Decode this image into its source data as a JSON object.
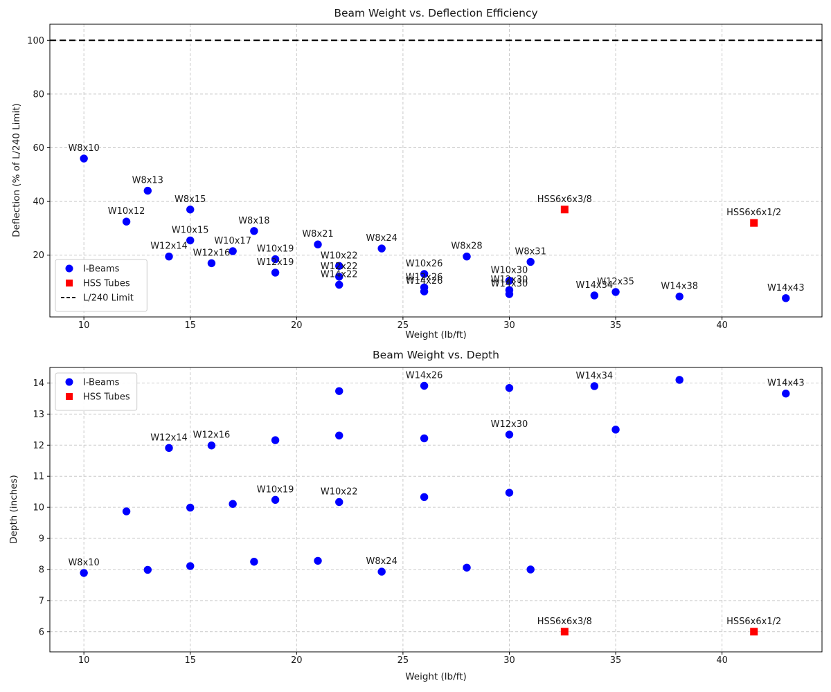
{
  "colors": {
    "ibeam": "#0000ff",
    "hss": "#ff0000",
    "ref_line": "#000000",
    "grid": "#c9c9c9",
    "spine": "#000000",
    "background": "#ffffff",
    "text": "#1a1a1a"
  },
  "chart_data": [
    {
      "type": "scatter",
      "title": "Beam Weight vs. Deflection Efficiency",
      "xlabel": "Weight (lb/ft)",
      "ylabel": "Deflection (% of L/240 Limit)",
      "xlim": [
        8.4,
        44.7
      ],
      "ylim": [
        -3,
        106
      ],
      "xticks": [
        10,
        15,
        20,
        25,
        30,
        35,
        40
      ],
      "yticks": [
        20,
        40,
        60,
        80,
        100
      ],
      "grid": true,
      "legend": {
        "position": "lower-left",
        "entries": [
          "I-Beams",
          "HSS Tubes",
          "L/240 Limit"
        ]
      },
      "series": [
        {
          "name": "I-Beams",
          "marker": "circle",
          "color": "#0000ff",
          "points": [
            {
              "label": "W8x10",
              "x": 10,
              "y": 56,
              "labeled": true
            },
            {
              "label": "W10x12",
              "x": 12,
              "y": 32.5,
              "labeled": true
            },
            {
              "label": "W8x13",
              "x": 13,
              "y": 44,
              "labeled": true
            },
            {
              "label": "W12x14",
              "x": 14,
              "y": 19.5,
              "labeled": true
            },
            {
              "label": "W8x15",
              "x": 15,
              "y": 37,
              "labeled": true
            },
            {
              "label": "W10x15",
              "x": 15,
              "y": 25.5,
              "labeled": true
            },
            {
              "label": "W12x16",
              "x": 16,
              "y": 17,
              "labeled": true
            },
            {
              "label": "W10x17",
              "x": 17,
              "y": 21.5,
              "labeled": true
            },
            {
              "label": "W8x18",
              "x": 18,
              "y": 29,
              "labeled": true
            },
            {
              "label": "W10x19",
              "x": 19,
              "y": 18.5,
              "labeled": true
            },
            {
              "label": "W12x19",
              "x": 19,
              "y": 13.5,
              "labeled": true
            },
            {
              "label": "W8x21",
              "x": 21,
              "y": 24,
              "labeled": true
            },
            {
              "label": "W10x22",
              "x": 22,
              "y": 16,
              "labeled": true
            },
            {
              "label": "W12x22",
              "x": 22,
              "y": 12,
              "labeled": true
            },
            {
              "label": "W14x22",
              "x": 22,
              "y": 9,
              "labeled": true
            },
            {
              "label": "W8x24",
              "x": 24,
              "y": 22.5,
              "labeled": true
            },
            {
              "label": "W10x26",
              "x": 26,
              "y": 13,
              "labeled": true
            },
            {
              "label": "W12x26",
              "x": 26,
              "y": 8,
              "labeled": true
            },
            {
              "label": "W14x26",
              "x": 26,
              "y": 6.5,
              "labeled": true
            },
            {
              "label": "W8x28",
              "x": 28,
              "y": 19.5,
              "labeled": true
            },
            {
              "label": "W10x30",
              "x": 30,
              "y": 10.5,
              "labeled": true
            },
            {
              "label": "W12x30",
              "x": 30,
              "y": 7,
              "labeled": true
            },
            {
              "label": "W14x30",
              "x": 30,
              "y": 5.5,
              "labeled": true
            },
            {
              "label": "W8x31",
              "x": 31,
              "y": 17.5,
              "labeled": true
            },
            {
              "label": "W14x34",
              "x": 34,
              "y": 5,
              "labeled": true
            },
            {
              "label": "W12x35",
              "x": 35,
              "y": 6.3,
              "labeled": true
            },
            {
              "label": "W14x38",
              "x": 38,
              "y": 4.6,
              "labeled": true
            },
            {
              "label": "W14x43",
              "x": 43,
              "y": 4,
              "labeled": true
            }
          ]
        },
        {
          "name": "HSS Tubes",
          "marker": "square",
          "color": "#ff0000",
          "points": [
            {
              "label": "HSS6x6x3/8",
              "x": 32.6,
              "y": 37,
              "labeled": true
            },
            {
              "label": "HSS6x6x1/2",
              "x": 41.5,
              "y": 32,
              "labeled": true
            }
          ]
        }
      ],
      "ref_lines": [
        {
          "name": "L/240 Limit",
          "y": 100,
          "color": "#000000",
          "dashed": true
        }
      ]
    },
    {
      "type": "scatter",
      "title": "Beam Weight vs. Depth",
      "xlabel": "Weight (lb/ft)",
      "ylabel": "Depth (inches)",
      "xlim": [
        8.4,
        44.7
      ],
      "ylim": [
        5.35,
        14.5
      ],
      "xticks": [
        10,
        15,
        20,
        25,
        30,
        35,
        40
      ],
      "yticks": [
        6,
        7,
        8,
        9,
        10,
        11,
        12,
        13,
        14
      ],
      "grid": true,
      "legend": {
        "position": "upper-left",
        "entries": [
          "I-Beams",
          "HSS Tubes"
        ]
      },
      "series": [
        {
          "name": "I-Beams",
          "marker": "circle",
          "color": "#0000ff",
          "points": [
            {
              "label": "W8x10",
              "x": 10,
              "y": 7.89,
              "labeled": true
            },
            {
              "label": "W10x12",
              "x": 12,
              "y": 9.87,
              "labeled": false
            },
            {
              "label": "W8x13",
              "x": 13,
              "y": 7.99,
              "labeled": false
            },
            {
              "label": "W12x14",
              "x": 14,
              "y": 11.91,
              "labeled": true
            },
            {
              "label": "W8x15",
              "x": 15,
              "y": 8.11,
              "labeled": false
            },
            {
              "label": "W10x15",
              "x": 15,
              "y": 9.99,
              "labeled": false
            },
            {
              "label": "W12x16",
              "x": 16,
              "y": 11.99,
              "labeled": true
            },
            {
              "label": "W10x17",
              "x": 17,
              "y": 10.11,
              "labeled": false
            },
            {
              "label": "W8x18",
              "x": 18,
              "y": 8.25,
              "labeled": false
            },
            {
              "label": "W10x19",
              "x": 19,
              "y": 10.24,
              "labeled": true
            },
            {
              "label": "W12x19",
              "x": 19,
              "y": 12.16,
              "labeled": false
            },
            {
              "label": "W8x21",
              "x": 21,
              "y": 8.28,
              "labeled": false
            },
            {
              "label": "W10x22",
              "x": 22,
              "y": 10.17,
              "labeled": true
            },
            {
              "label": "W12x22",
              "x": 22,
              "y": 12.31,
              "labeled": false
            },
            {
              "label": "W14x22",
              "x": 22,
              "y": 13.74,
              "labeled": false
            },
            {
              "label": "W8x24",
              "x": 24,
              "y": 7.93,
              "labeled": true
            },
            {
              "label": "W10x26",
              "x": 26,
              "y": 10.33,
              "labeled": false
            },
            {
              "label": "W12x26",
              "x": 26,
              "y": 12.22,
              "labeled": false
            },
            {
              "label": "W14x26",
              "x": 26,
              "y": 13.91,
              "labeled": true
            },
            {
              "label": "W8x28",
              "x": 28,
              "y": 8.06,
              "labeled": false
            },
            {
              "label": "W10x30",
              "x": 30,
              "y": 10.47,
              "labeled": false
            },
            {
              "label": "W12x30",
              "x": 30,
              "y": 12.34,
              "labeled": true
            },
            {
              "label": "W14x30",
              "x": 30,
              "y": 13.84,
              "labeled": false
            },
            {
              "label": "W8x31",
              "x": 31,
              "y": 8.0,
              "labeled": false
            },
            {
              "label": "W14x34",
              "x": 34,
              "y": 13.9,
              "labeled": true
            },
            {
              "label": "W12x35",
              "x": 35,
              "y": 12.5,
              "labeled": false
            },
            {
              "label": "W14x38",
              "x": 38,
              "y": 14.1,
              "labeled": false
            },
            {
              "label": "W14x43",
              "x": 43,
              "y": 13.66,
              "labeled": true
            }
          ]
        },
        {
          "name": "HSS Tubes",
          "marker": "square",
          "color": "#ff0000",
          "points": [
            {
              "label": "HSS6x6x3/8",
              "x": 32.6,
              "y": 6.0,
              "labeled": true
            },
            {
              "label": "HSS6x6x1/2",
              "x": 41.5,
              "y": 6.0,
              "labeled": true
            }
          ]
        }
      ],
      "ref_lines": []
    }
  ]
}
